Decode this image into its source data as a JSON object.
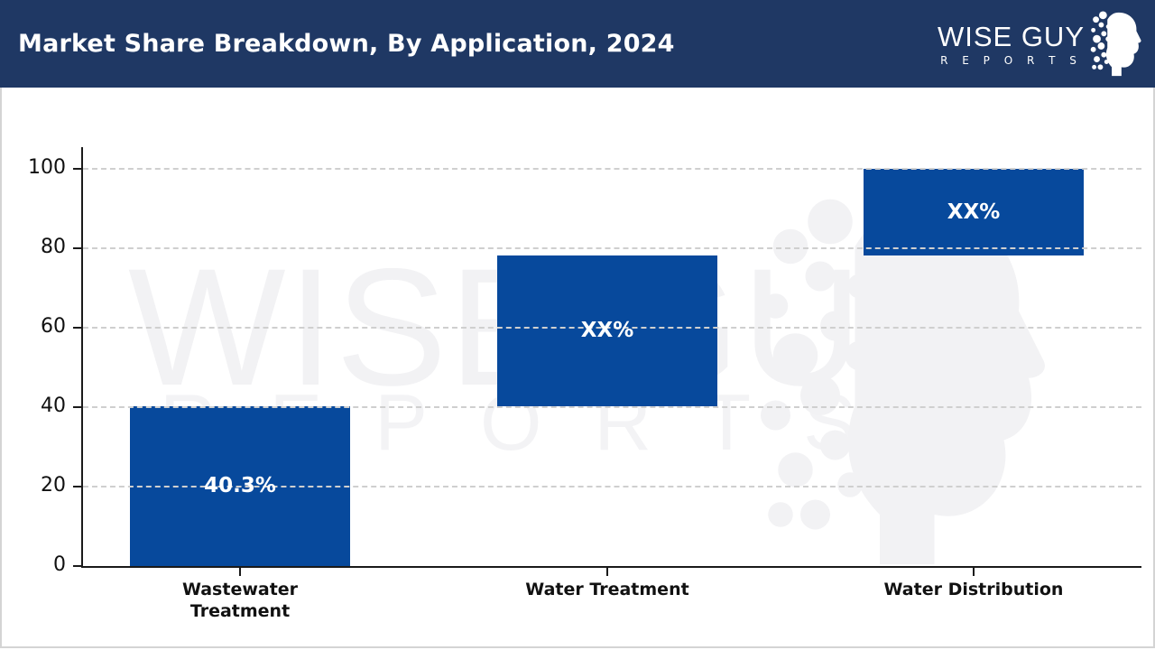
{
  "header": {
    "title": "Market Share Breakdown, By Application, 2024",
    "bg_color": "#1f3864",
    "logo": {
      "name": "WISE GUY",
      "sub": "R E P O R T S"
    }
  },
  "watermark": {
    "line1": "WISE GUY",
    "line2": "REPORTS"
  },
  "chart_data": {
    "type": "bar",
    "variant": "waterfall",
    "title": "Market Share Breakdown, By Application, 2024",
    "categories": [
      "Wastewater Treatment",
      "Water Treatment",
      "Water Distribution"
    ],
    "bars": [
      {
        "category_lines": [
          "Wastewater",
          "Treatment"
        ],
        "start": 0,
        "end": 40.3,
        "label": "40.3%"
      },
      {
        "category_lines": [
          "Water Treatment"
        ],
        "start": 40.3,
        "end": 78.2,
        "label": "XX%"
      },
      {
        "category_lines": [
          "Water Distribution"
        ],
        "start": 78.2,
        "end": 100,
        "label": "XX%"
      }
    ],
    "xlabel": "",
    "ylabel": "",
    "ylim": [
      0,
      100
    ],
    "yticks": [
      0,
      20,
      40,
      60,
      80,
      100
    ],
    "bar_color": "#07499c",
    "bar_label_color": "#ffffff",
    "grid": true,
    "grid_style": "dashed",
    "grid_color": "#cfcfcf",
    "axis_color": "#1a1a1a",
    "legend": "none"
  }
}
